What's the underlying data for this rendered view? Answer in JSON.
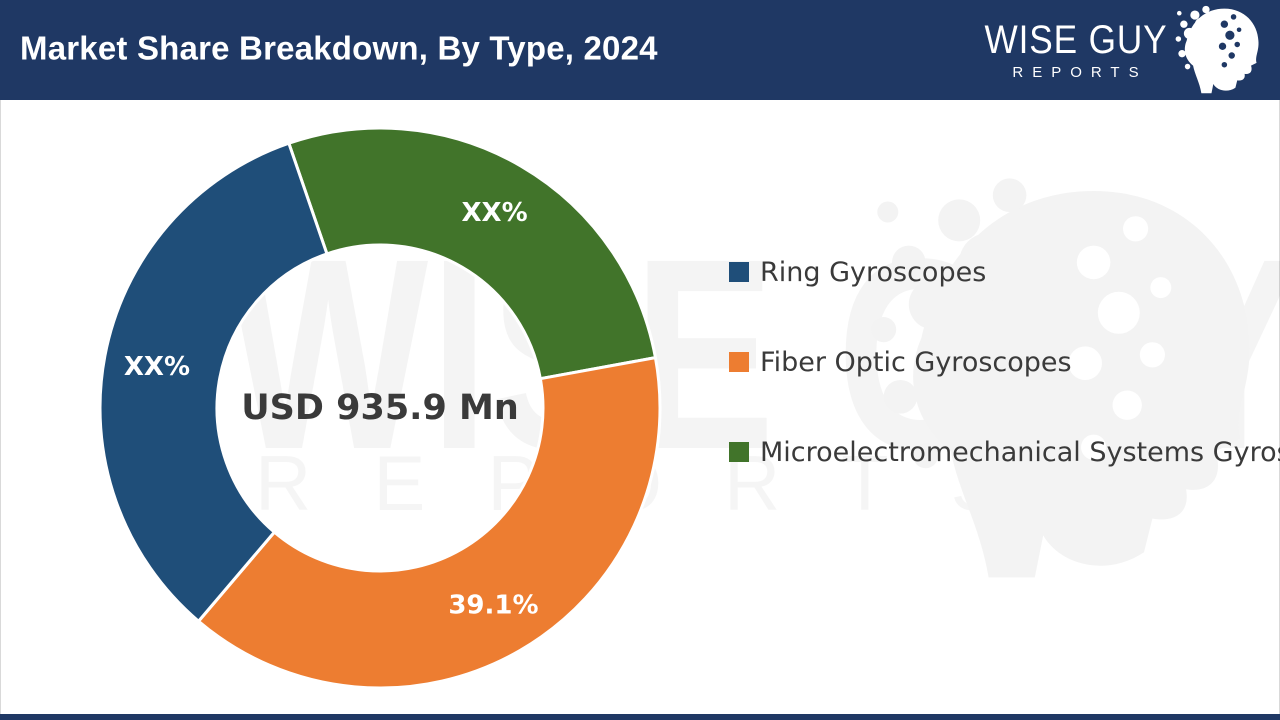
{
  "header": {
    "title": "Market Share Breakdown, By Type, 2024",
    "logo": {
      "line1": "WISE GUY",
      "line2": "REPORTS"
    }
  },
  "watermark": {
    "line1": "WISE GUY",
    "line2": "REPORTS"
  },
  "colors": {
    "header_bg": "#1F3864",
    "footer_bg": "#1F3864",
    "center_text": "#3a3a3a",
    "legend_text": "#3a3a3a"
  },
  "chart_data": {
    "type": "pie",
    "subtype": "donut",
    "title": "Market Share Breakdown, By Type, 2024",
    "center_label": "USD 935.9 Mn",
    "legend_position": "right",
    "start_angle_deg": 341,
    "draw_order": [
      2,
      1,
      0
    ],
    "segments": [
      {
        "name": "Ring Gyroscopes",
        "color": "#1F4E79",
        "display_label": "XX%",
        "percent_estimate": 33.5
      },
      {
        "name": "Fiber Optic Gyroscopes",
        "color": "#ED7D31",
        "display_label": "39.1%",
        "percent_estimate": 39.1
      },
      {
        "name": "Microelectromechanical Systems Gyroscopes",
        "color": "#41742A",
        "display_label": "XX%",
        "percent_estimate": 27.4
      }
    ],
    "geometry": {
      "outer_radius": 280,
      "inner_radius": 163,
      "label_radius": 227,
      "separator_color": "#ffffff"
    }
  }
}
